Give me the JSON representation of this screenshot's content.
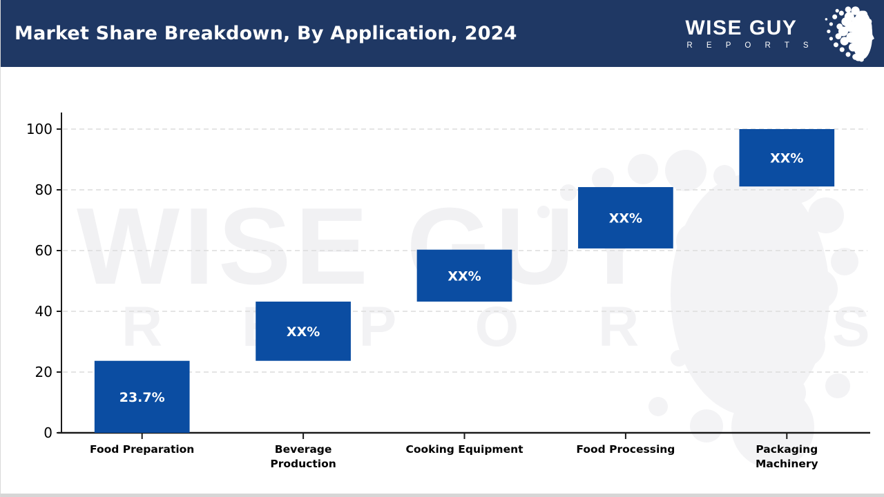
{
  "header": {
    "title": "Market Share Breakdown, By Application, 2024",
    "logo": {
      "line1": "WISE GUY",
      "line2": "R E P O R T S"
    }
  },
  "watermark": {
    "line1": "WISE GUY",
    "line2": "R E P O R T S"
  },
  "chart_data": {
    "type": "bar",
    "subtype": "waterfall",
    "title": "Market Share Breakdown, By Application, 2024",
    "xlabel": "",
    "ylabel": "",
    "ylim": [
      0,
      100
    ],
    "yticks": [
      0,
      20,
      40,
      60,
      80,
      100
    ],
    "grid": true,
    "legend": "none",
    "categories": [
      "Food Preparation",
      "Beverage Production",
      "Cooking Equipment",
      "Food Processing",
      "Packaging Machinery"
    ],
    "category_label_lines": [
      [
        "Food Preparation"
      ],
      [
        "Beverage",
        "Production"
      ],
      [
        "Cooking Equipment"
      ],
      [
        "Food Processing"
      ],
      [
        "Packaging",
        "Machinery"
      ]
    ],
    "series": [
      {
        "name": "Market Share (%)",
        "segments": [
          {
            "category": "Food Preparation",
            "start": 0,
            "end": 23.7,
            "label": "23.7%"
          },
          {
            "category": "Beverage Production",
            "start": 23.7,
            "end": 43.2,
            "label": "XX%"
          },
          {
            "category": "Cooking Equipment",
            "start": 43.2,
            "end": 60.3,
            "label": "XX%"
          },
          {
            "category": "Food Processing",
            "start": 60.7,
            "end": 80.9,
            "label": "XX%"
          },
          {
            "category": "Packaging Machinery",
            "start": 81.1,
            "end": 100,
            "label": "XX%"
          }
        ]
      }
    ],
    "colors": {
      "bar": "#0b4da2",
      "bar_label": "#ffffff",
      "grid": "#dcdcdc",
      "axis": "#1a1a1a",
      "tick_label": "#000000",
      "header_bg": "#1f3864",
      "footer_bar": "#d6d6d6"
    }
  }
}
